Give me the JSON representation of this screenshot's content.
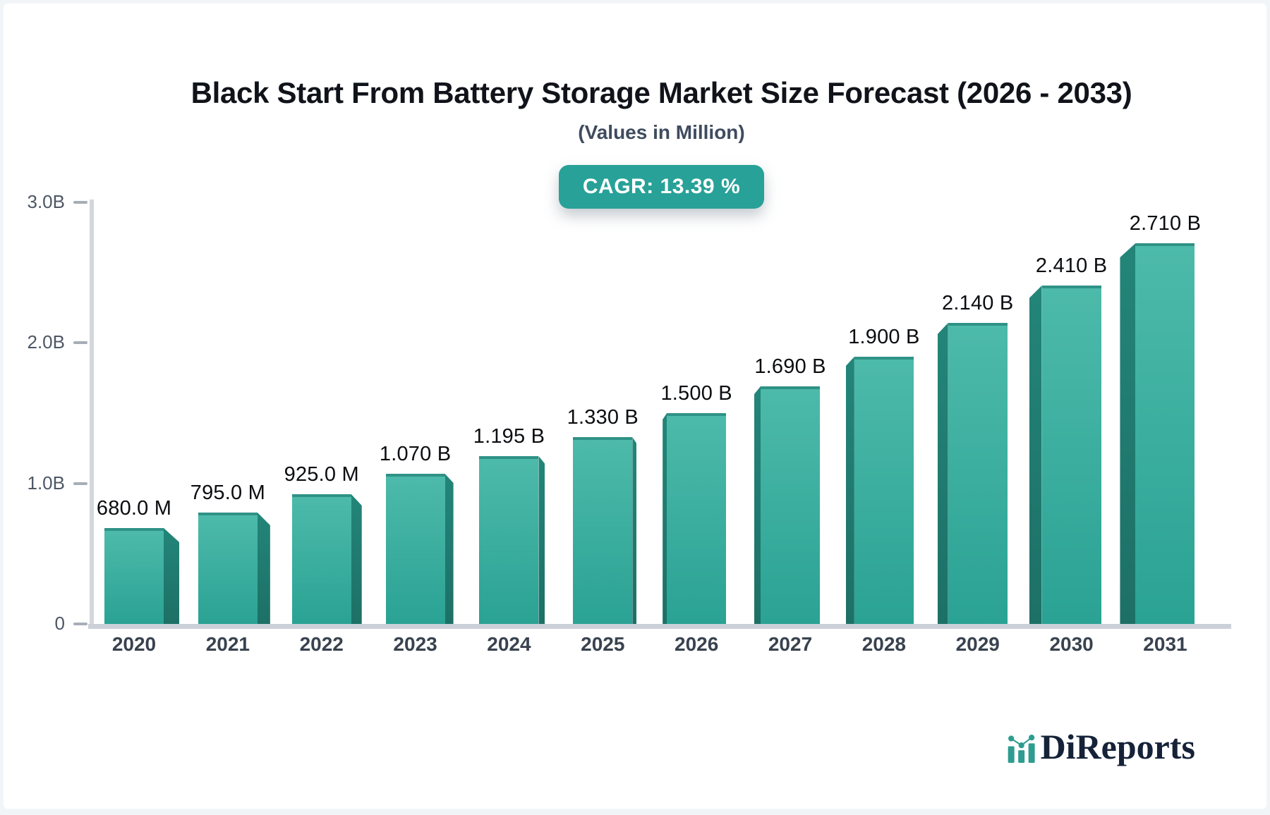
{
  "page": {
    "background": "#f2f5f8",
    "card_background": "#ffffff"
  },
  "header": {
    "title": "Black Start From Battery Storage Market Size Forecast (2026 - 2033)",
    "subtitle": "(Values in Million)"
  },
  "badge": {
    "label": "CAGR: 13.39 %",
    "background": "#28a198",
    "text_color": "#ffffff"
  },
  "chart_data": {
    "type": "bar",
    "title": "Black Start From Battery Storage Market Size Forecast (2026 - 2033)",
    "subtitle": "(Values in Million)",
    "unit": "Million USD",
    "cagr_percent": 13.39,
    "categories": [
      "2020",
      "2021",
      "2022",
      "2023",
      "2024",
      "2025",
      "2026",
      "2027",
      "2028",
      "2029",
      "2030",
      "2031"
    ],
    "values": [
      680,
      795,
      925,
      1070,
      1195,
      1330,
      1500,
      1690,
      1900,
      2140,
      2410,
      2710
    ],
    "value_labels": [
      "680.0 M",
      "795.0 M",
      "925.0 M",
      "1.070 B",
      "1.195 B",
      "1.330 B",
      "1.500 B",
      "1.690 B",
      "1.900 B",
      "2.140 B",
      "2.410 B",
      "2.710 B"
    ],
    "ylim": [
      0,
      3000
    ],
    "yticks": [
      {
        "value": 0,
        "label": "0"
      },
      {
        "value": 1000,
        "label": "1.0B"
      },
      {
        "value": 2000,
        "label": "2.0B"
      },
      {
        "value": 3000,
        "label": "3.0B"
      }
    ],
    "grid": false,
    "legend": false,
    "bar_color_top": "#4dbaaa",
    "bar_color_bottom": "#2aa294",
    "bar_top_edge_color": "#2f9286",
    "bar_side_color": "#1f7e73",
    "axis_color": "#ccd1d9",
    "label_color": "#0b0d10"
  },
  "footer": {
    "brand": "DiReports",
    "logo_icon": "bar-line-chart-icon",
    "brand_color": "#152238",
    "icon_color": "#2e9c90"
  }
}
